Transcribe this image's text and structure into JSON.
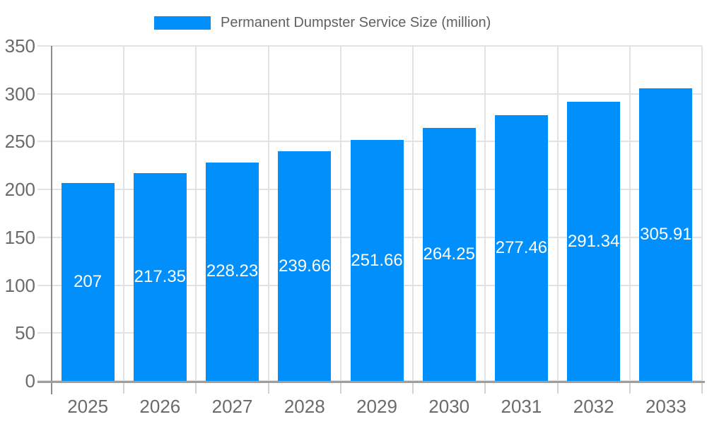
{
  "chart_data": {
    "type": "bar",
    "title": "Permanent Dumpster Service Size (million)",
    "categories": [
      "2025",
      "2026",
      "2027",
      "2028",
      "2029",
      "2030",
      "2031",
      "2032",
      "2033"
    ],
    "series": [
      {
        "name": "Permanent Dumpster Service Size (million)",
        "values": [
          207,
          217.35,
          228.23,
          239.66,
          251.66,
          264.25,
          277.46,
          291.34,
          305.91
        ]
      }
    ],
    "value_labels": [
      "207",
      "217.35",
      "228.23",
      "239.66",
      "251.66",
      "264.25",
      "277.46",
      "291.34",
      "305.91"
    ],
    "xlabel": "",
    "ylabel": "",
    "ylim": [
      0,
      350
    ],
    "yticks": [
      0,
      50,
      100,
      150,
      200,
      250,
      300,
      350
    ],
    "grid": true,
    "legend_position": "top",
    "bar_color": "#008FFB",
    "value_label_color": "#ffffff",
    "axis_label_color": "#6b6b6b"
  }
}
